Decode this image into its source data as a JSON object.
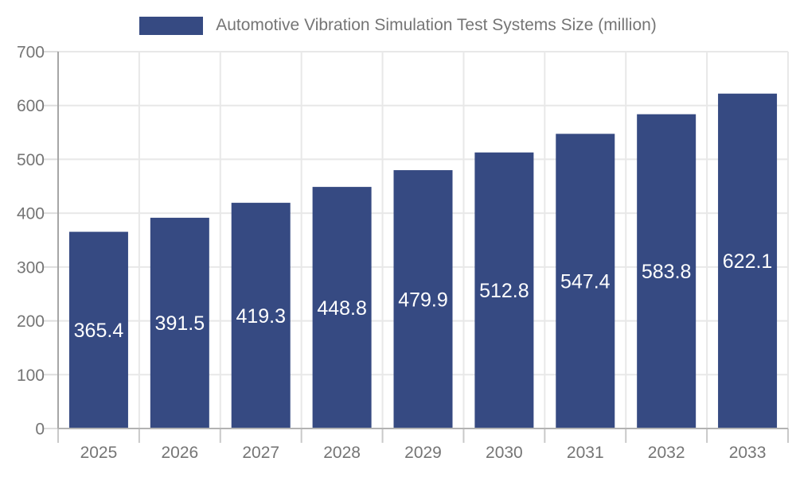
{
  "legend": {
    "label": "Automotive Vibration Simulation Test Systems Size (million)"
  },
  "chart_data": {
    "type": "bar",
    "title": "Automotive Vibration Simulation Test Systems Size (million)",
    "series_name": "Automotive Vibration Simulation Test Systems Size (million)",
    "categories": [
      "2025",
      "2026",
      "2027",
      "2028",
      "2029",
      "2030",
      "2031",
      "2032",
      "2033"
    ],
    "values": [
      365.4,
      391.5,
      419.3,
      448.8,
      479.9,
      512.8,
      547.4,
      583.8,
      622.1
    ],
    "xlabel": "",
    "ylabel": "",
    "ylim": [
      0,
      700
    ],
    "y_ticks": [
      0,
      100,
      200,
      300,
      400,
      500,
      600,
      700
    ],
    "grid": true,
    "legend_position": "top",
    "value_labels": "inside-center",
    "colors": {
      "bar": "#364A82",
      "grid": "#E8E8E8",
      "y_axis": "#A6A6A6",
      "x_axis": "#B3B3B3",
      "y_tick": "#DDDDDD",
      "x_tick": "#C9C9C9",
      "axis_text": "#757575",
      "value_label": "#FFFFFF"
    }
  }
}
